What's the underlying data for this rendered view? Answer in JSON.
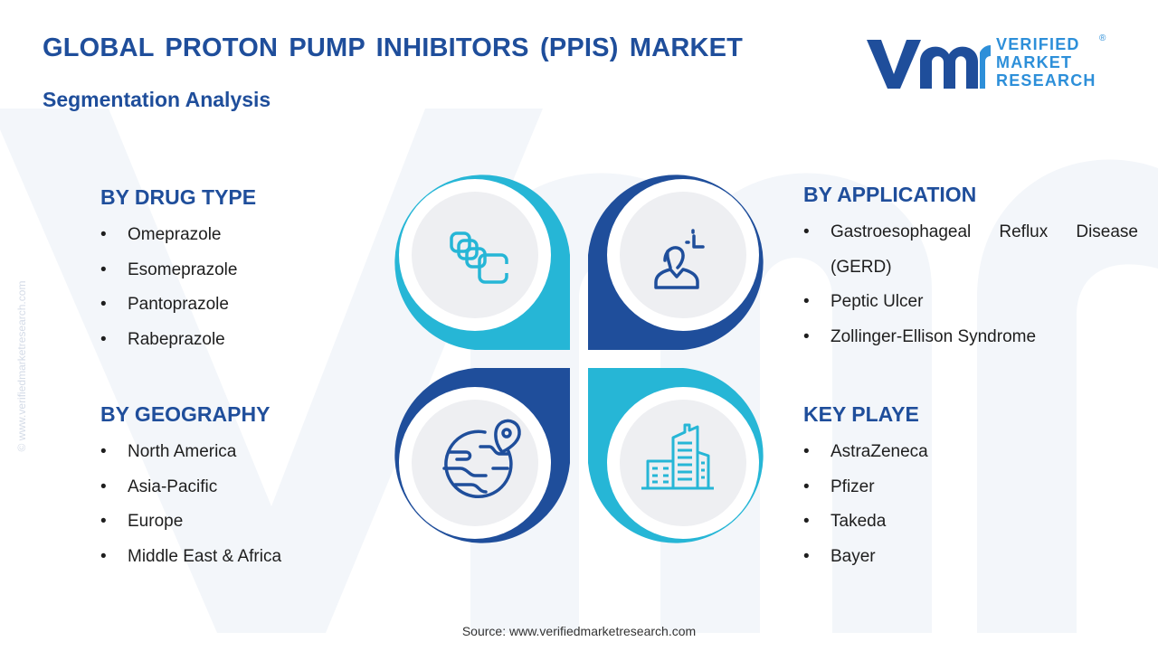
{
  "header": {
    "title": "GLOBAL PROTON PUMP INHIBITORS (PPIS) MARKET",
    "subtitle": "Segmentation Analysis"
  },
  "logo": {
    "line1": "VERIFIED",
    "line2": "MARKET",
    "line3": "RESEARCH",
    "registered": "®"
  },
  "watermark": {
    "side_text": "© www.verifiedmarketresearch.com"
  },
  "segments": {
    "drug_type": {
      "heading": "BY DRUG TYPE",
      "items": [
        "Omeprazole",
        "Esomeprazole",
        "Pantoprazole",
        "Rabeprazole"
      ]
    },
    "geography": {
      "heading": "BY GEOGRAPHY",
      "items": [
        "North America",
        "Asia-Pacific",
        "Europe",
        "Middle East & Africa"
      ]
    },
    "application": {
      "heading": "BY APPLICATION",
      "items": [
        "Gastroesophageal Reflux Disease (GERD)",
        "Peptic Ulcer",
        "Zollinger-Ellison Syndrome"
      ]
    },
    "key_players": {
      "heading": "KEY PLAYE",
      "items": [
        "AstraZeneca",
        "Pfizer",
        "Takeda",
        "Bayer"
      ]
    }
  },
  "icons": {
    "top_left": "capsules-icon",
    "top_right": "person-analysis-icon",
    "bottom_left": "globe-location-icon",
    "bottom_right": "city-buildings-icon"
  },
  "colors": {
    "dark_blue": "#1f4e9b",
    "light_blue": "#26b6d6",
    "logo_blue": "#2d8fd9",
    "text": "#1e1e1e"
  },
  "footer": {
    "source": "Source: www.verifiedmarketresearch.com"
  }
}
